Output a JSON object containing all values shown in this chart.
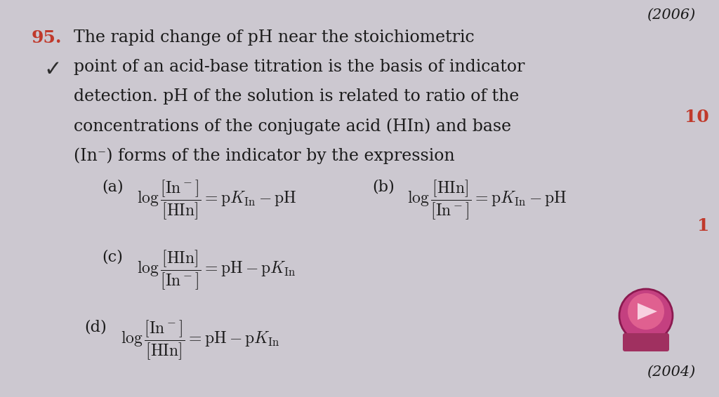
{
  "background_color": "#ccc8d0",
  "text_color": "#1a1a1a",
  "red_color": "#c0392b",
  "pink_color": "#e8579a",
  "year_top": "(2006)",
  "question_num": "95.",
  "right_number": "10",
  "right_number2": "1",
  "year_bottom": "(2004)",
  "figsize": [
    10.24,
    5.66
  ],
  "dpi": 100
}
